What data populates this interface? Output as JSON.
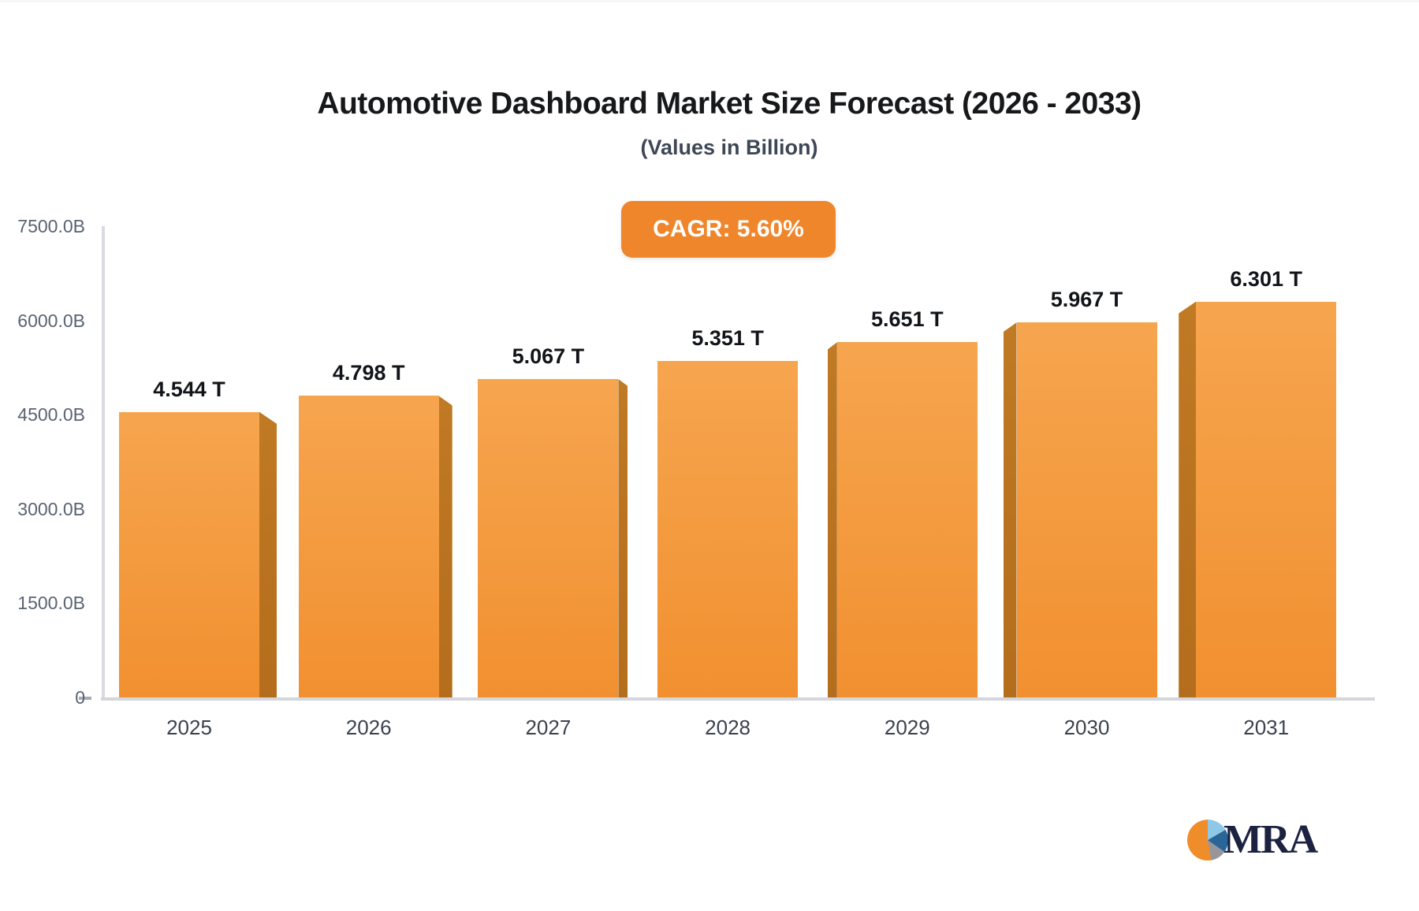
{
  "header": {
    "title": "Automotive Dashboard Market Size Forecast (2026 - 2033)",
    "subtitle": "(Values in Billion)",
    "cagr_badge": "CAGR: 5.60%"
  },
  "chart_data": {
    "type": "bar",
    "title": "Automotive Dashboard Market Size Forecast (2026 - 2033)",
    "subtitle": "(Values in Billion)",
    "categories": [
      "2025",
      "2026",
      "2027",
      "2028",
      "2029",
      "2030",
      "2031"
    ],
    "values": [
      4544,
      4798,
      5067,
      5351,
      5651,
      5967,
      6301
    ],
    "value_labels": [
      "4.544 T",
      "4.798 T",
      "5.067 T",
      "5.351 T",
      "5.651 T",
      "5.967 T",
      "6.301 T"
    ],
    "unit_suffix": "B",
    "ylim": [
      0,
      7500
    ],
    "ytick_values": [
      7500,
      6000,
      4500,
      3000,
      1500,
      0
    ],
    "ytick_labels": [
      "7500.0B",
      "6000.0B",
      "4500.0B",
      "3000.0B",
      "1500.0B",
      "0"
    ],
    "xlabel": "",
    "ylabel": "",
    "grid": false,
    "legend": false,
    "annotation": "CAGR: 5.60%",
    "bar_style": "3d-perspective",
    "colors": {
      "bar_face_top": "#f6a54f",
      "bar_face_bottom": "#f19030",
      "bar_side": "#ba7320",
      "badge_background": "#f0862b",
      "badge_text": "#ffffff",
      "axis_line": "#d4d6db",
      "ytick_text": "#5a6372",
      "xtick_text": "#3a4250",
      "value_text": "#111418"
    }
  },
  "footer": {
    "logo_text": "MRA",
    "logo_pie_colors": [
      "#ef8d2b",
      "#8fc8e6",
      "#2a6597",
      "#97979b"
    ]
  }
}
